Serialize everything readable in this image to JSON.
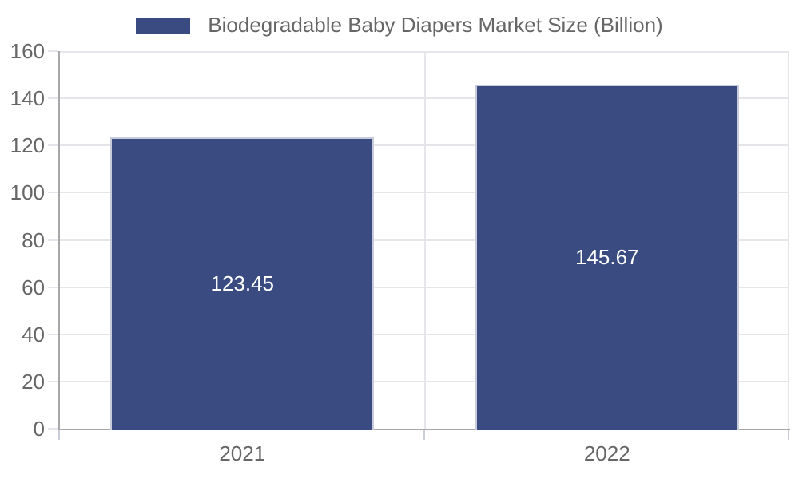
{
  "chart_data": {
    "type": "bar",
    "categories": [
      "2021",
      "2022"
    ],
    "series": [
      {
        "name": "Biodegradable Baby Diapers Market Size (Billion)",
        "values": [
          123.45,
          145.67
        ]
      }
    ],
    "value_labels": [
      "123.45",
      "145.67"
    ],
    "ylim": [
      0,
      160
    ],
    "yticks": [
      0,
      20,
      40,
      60,
      80,
      100,
      120,
      140,
      160
    ],
    "grid": true,
    "legend_position": "top",
    "colors": {
      "bar_fill": "#3A4B81",
      "bar_border": "#C7CBDB",
      "axis_line": "#A7A7A7",
      "grid_line": "#E6E6EA",
      "tick_x": "#C9CDD9",
      "tick_y": "#E4E5EA",
      "label_text": "#666666",
      "value_text": "#FFFFFF",
      "background": "#FFFFFF"
    }
  }
}
